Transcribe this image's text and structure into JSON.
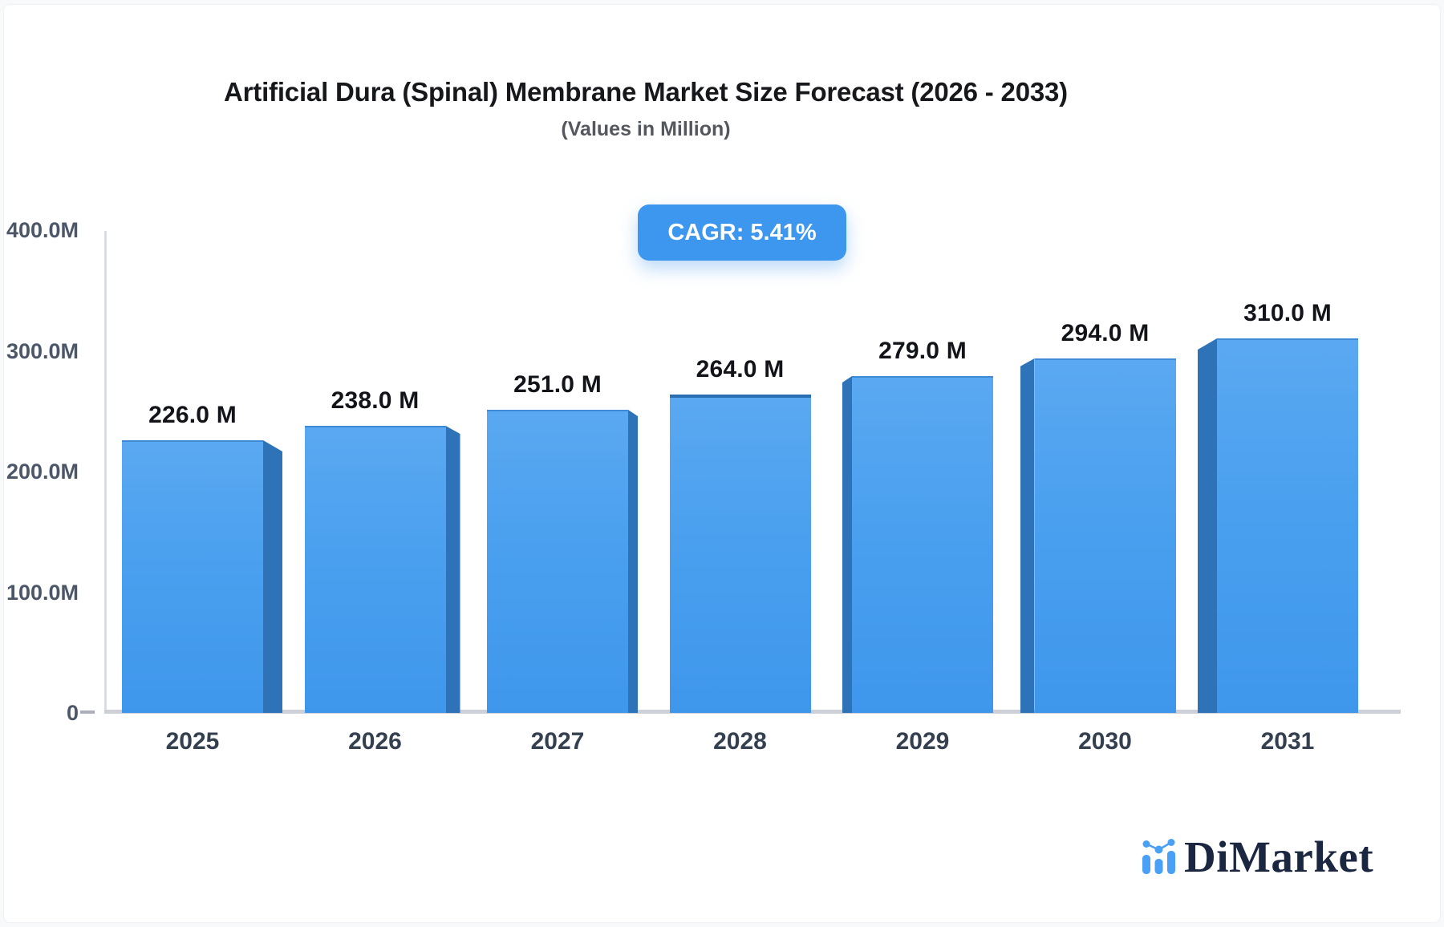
{
  "header": {
    "cagr_badge": "CAGR: 5.41%"
  },
  "chart_data": {
    "type": "bar",
    "title": "Artificial Dura (Spinal) Membrane Market Size Forecast (2026 - 2033)",
    "subtitle": "(Values in Million)",
    "categories": [
      "2025",
      "2026",
      "2027",
      "2028",
      "2029",
      "2030",
      "2031"
    ],
    "values": [
      226,
      238,
      251,
      264,
      279,
      294,
      310
    ],
    "value_labels": [
      "226.0 M",
      "238.0 M",
      "251.0 M",
      "264.0 M",
      "279.0 M",
      "294.0 M",
      "310.0 M"
    ],
    "ylim": [
      0,
      400
    ],
    "yticks": [
      {
        "value": 400,
        "label": "400.0M"
      },
      {
        "value": 300,
        "label": "300.0M"
      },
      {
        "value": 200,
        "label": "200.0M"
      },
      {
        "value": 100,
        "label": "100.0M"
      },
      {
        "value": 0,
        "label": "0"
      }
    ],
    "grid": false,
    "legend": false,
    "annotations": [
      "CAGR: 5.41%"
    ]
  },
  "footer": {
    "brand": "DiMarket"
  },
  "colors": {
    "badge_blue": "#3d97ee",
    "bar_face_top": "#5aa8f1",
    "bar_face_bottom": "#3f97ec",
    "bar_side": "#2e73b7",
    "bar_top_edge": "#3f8ad6",
    "bar_top_edge_center": "#2b6fb3",
    "axis_line": "#dadde3",
    "baseline": "#cdd1d7",
    "y_label": "#4b5669",
    "x_label": "#34404f",
    "value_label": "#121419",
    "title": "#17181c",
    "subtitle": "#55575e",
    "logo_blue": "#4aa0f5",
    "logo_text": "#1b2640",
    "page_background": "#f7f9fb",
    "card_background": "#ffffff"
  }
}
